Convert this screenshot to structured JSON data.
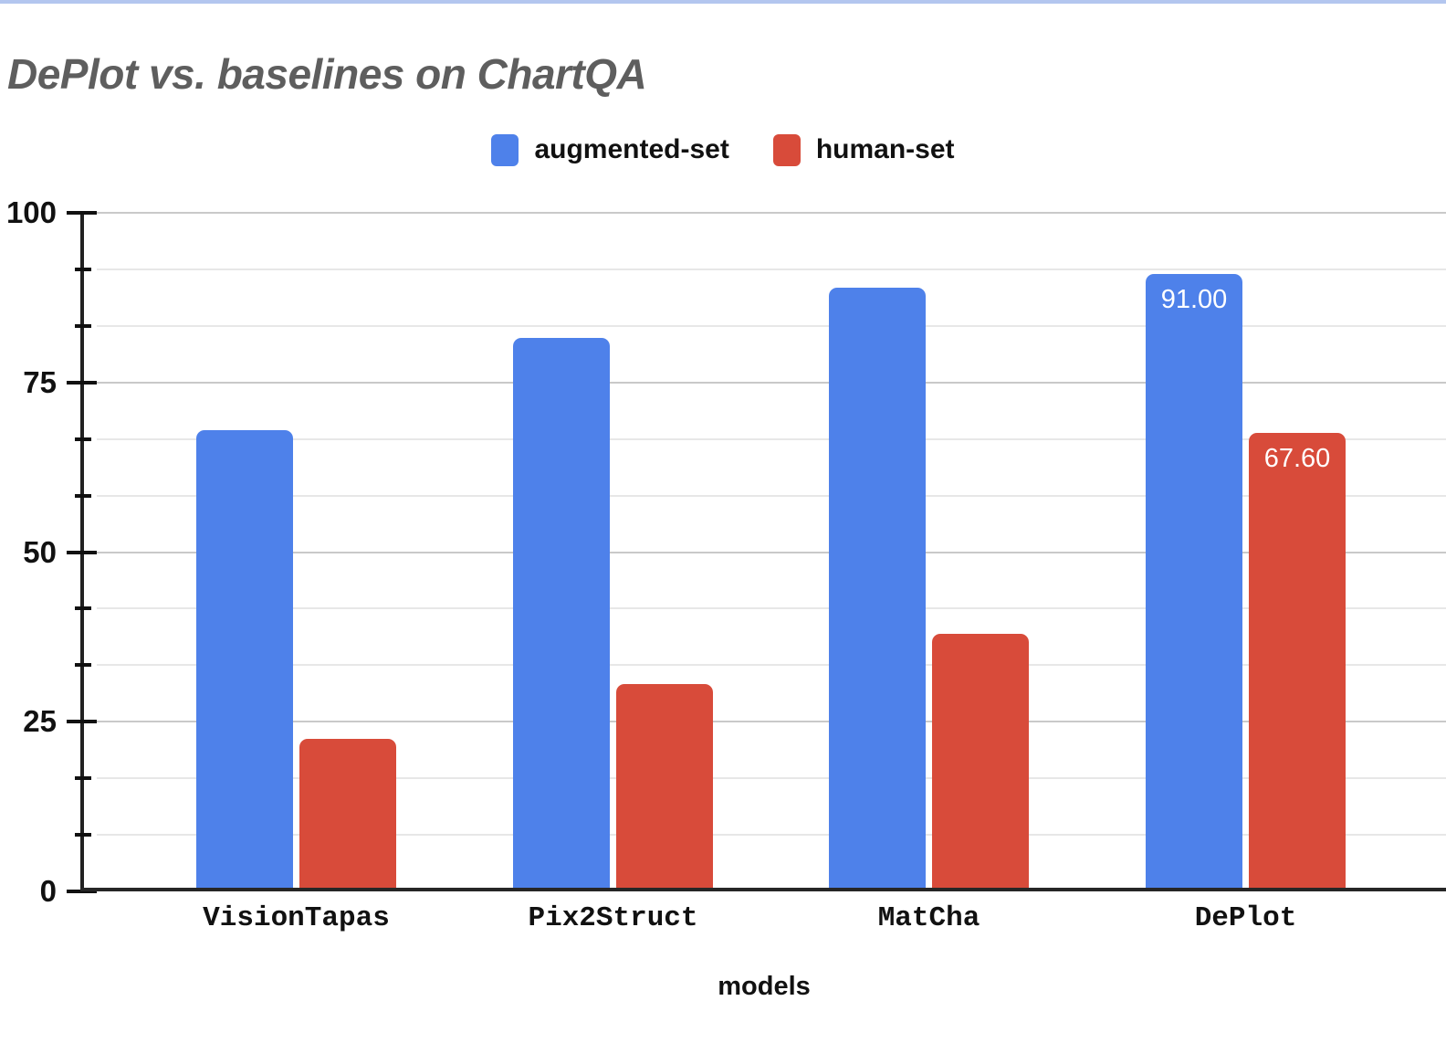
{
  "page": {
    "top_border_color": "#b3c6ef",
    "background_color": "#ffffff",
    "title_color": "#5e5e5e"
  },
  "chart_data": {
    "type": "bar",
    "title": "DePlot vs. baselines on ChartQA",
    "xlabel": "models",
    "ylabel": "",
    "categories": [
      "VisionTapas",
      "Pix2Struct",
      "MatCha",
      "DePlot"
    ],
    "series": [
      {
        "name": "augmented-set",
        "color": "#4e81ea",
        "values": [
          68,
          81.5,
          89,
          91
        ],
        "data_labels": [
          null,
          null,
          null,
          "91.00"
        ]
      },
      {
        "name": "human-set",
        "color": "#d84b3a",
        "values": [
          22.5,
          30.5,
          38,
          67.6
        ],
        "data_labels": [
          null,
          null,
          null,
          "67.60"
        ]
      }
    ],
    "ylim": [
      0,
      100
    ],
    "y_major_ticks": [
      0,
      25,
      50,
      75,
      100
    ],
    "y_minor_ticks": [
      8.33,
      16.67,
      33.33,
      41.67,
      58.33,
      66.67,
      83.33,
      91.67
    ],
    "grid": "horizontal",
    "legend_position": "top",
    "grid_major_color": "#c9c9c9",
    "grid_minor_color": "#e7e7e7"
  }
}
